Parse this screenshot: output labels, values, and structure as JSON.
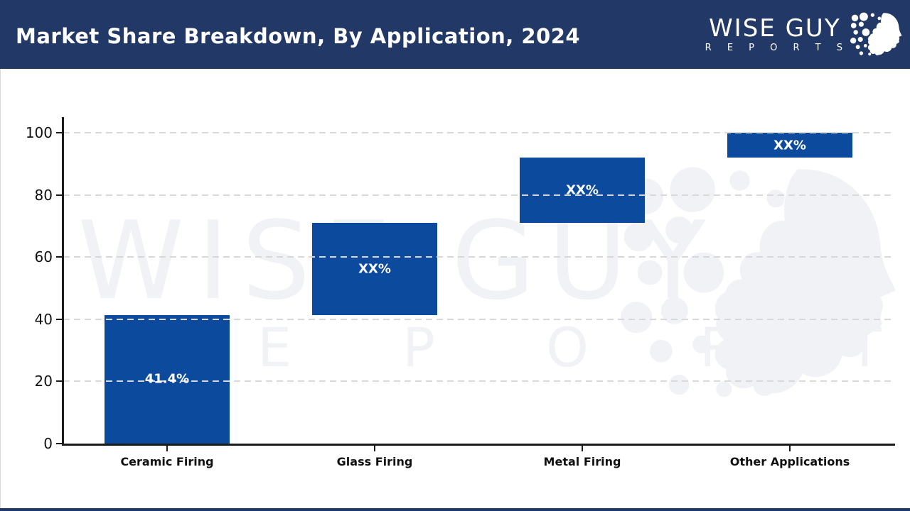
{
  "header": {
    "title": "Market Share Breakdown, By Application, 2024",
    "logo": {
      "line1": "WISE GUY",
      "line2": "R E P O R T S"
    }
  },
  "watermark": {
    "line1": "WISE GUY",
    "line2": "R E P O R T S"
  },
  "colors": {
    "header_bg": "#223866",
    "bar": "#0c4a9e",
    "gridline": "#d8d8d8",
    "axis": "#1a1a1a",
    "bar_label": "#ffffff",
    "watermark": "#f1f2f5"
  },
  "chart_data": {
    "type": "bar",
    "subtype": "floating-waterfall",
    "title": "Market Share Breakdown, By Application, 2024",
    "xlabel": "",
    "ylabel": "",
    "ylim": [
      0,
      100
    ],
    "yticks": [
      0,
      20,
      40,
      60,
      80,
      100
    ],
    "grid": "horizontal-dashed",
    "legend": "none",
    "categories": [
      "Ceramic Firing",
      "Glass Firing",
      "Metal Firing",
      "Other Applications"
    ],
    "segments": [
      {
        "category": "Ceramic Firing",
        "start": 0,
        "end": 41.4,
        "label": "41.4%"
      },
      {
        "category": "Glass Firing",
        "start": 41.4,
        "end": 71,
        "label": "XX%"
      },
      {
        "category": "Metal Firing",
        "start": 71,
        "end": 92,
        "label": "XX%"
      },
      {
        "category": "Other Applications",
        "start": 92,
        "end": 100,
        "label": "XX%"
      }
    ]
  }
}
